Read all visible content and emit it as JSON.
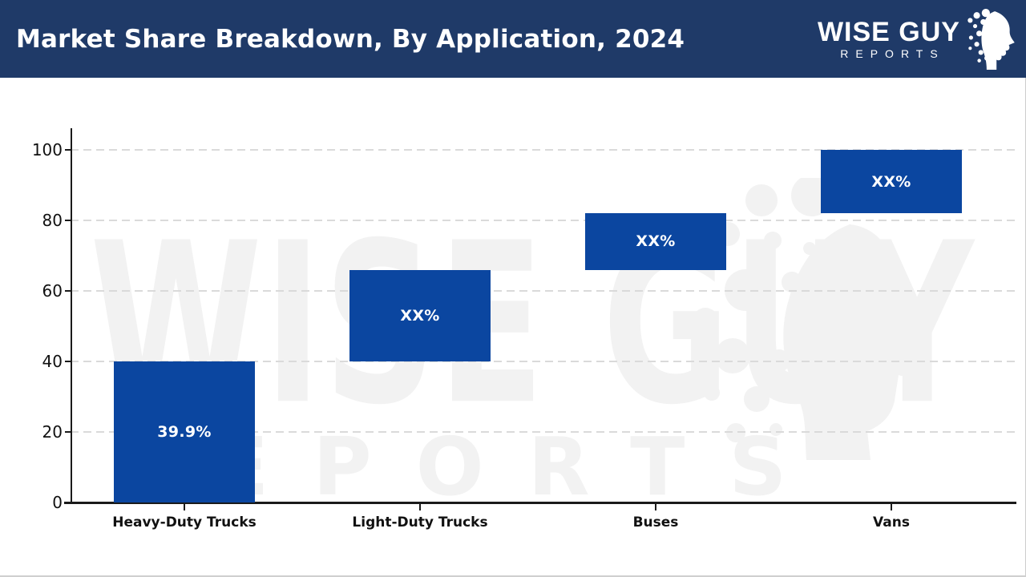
{
  "header": {
    "title": "Market Share Breakdown, By Application, 2024",
    "logo": {
      "line1": "WISE GUY",
      "line2": "REPORTS"
    }
  },
  "watermark": {
    "line1": "WISE GUY",
    "line2": "REPORTS"
  },
  "colors": {
    "header_bg": "#1f3a68",
    "bar": "#0b46a0",
    "bar_label": "#ffffff",
    "grid": "#dadada",
    "axis": "#1a1a1a",
    "text": "#111111",
    "watermark": "#f2f2f2"
  },
  "chart_data": {
    "type": "bar",
    "subtype": "waterfall",
    "title": "Market Share Breakdown, By Application, 2024",
    "categories": [
      "Heavy-Duty Trucks",
      "Light-Duty Trucks",
      "Buses",
      "Vans"
    ],
    "bars": [
      {
        "category": "Heavy-Duty Trucks",
        "start": 0,
        "end": 39.9,
        "label": "39.9%"
      },
      {
        "category": "Light-Duty Trucks",
        "start": 39.9,
        "end": 66,
        "label": "XX%"
      },
      {
        "category": "Buses",
        "start": 66,
        "end": 82,
        "label": "XX%"
      },
      {
        "category": "Vans",
        "start": 82,
        "end": 100,
        "label": "XX%"
      }
    ],
    "xlabel": "",
    "ylabel": "",
    "ylim": [
      0,
      100
    ],
    "yticks": [
      0,
      20,
      40,
      60,
      80,
      100
    ],
    "grid": "dashed-horizontal",
    "legend": "none"
  }
}
